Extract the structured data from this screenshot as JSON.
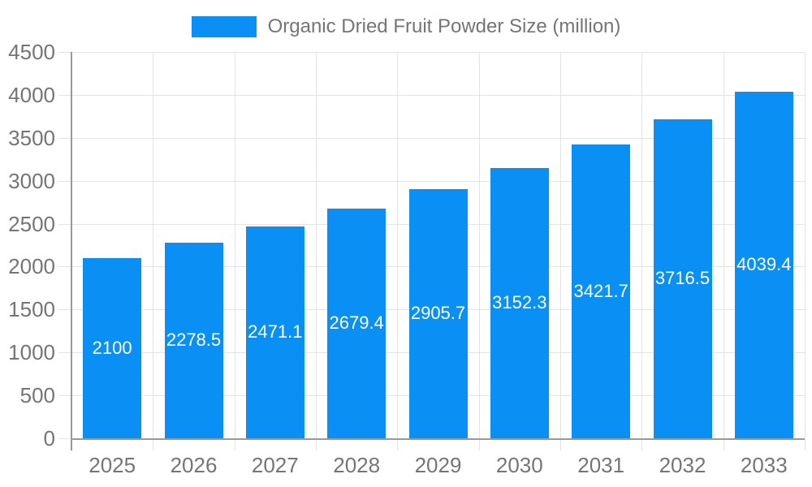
{
  "legend": {
    "label": "Organic Dried Fruit Powder Size (million)"
  },
  "chart_data": {
    "type": "bar",
    "title": "Organic Dried Fruit Powder Size (million)",
    "categories": [
      "2025",
      "2026",
      "2027",
      "2028",
      "2029",
      "2030",
      "2031",
      "2032",
      "2033"
    ],
    "values": [
      2100,
      2278.5,
      2471.1,
      2679.4,
      2905.7,
      3152.3,
      3421.7,
      3716.5,
      4039.4
    ],
    "value_labels": [
      "2100",
      "2278.5",
      "2471.1",
      "2679.4",
      "2905.7",
      "3152.3",
      "3421.7",
      "3716.5",
      "4039.4"
    ],
    "xlabel": "",
    "ylabel": "",
    "ylim": [
      0,
      4500
    ],
    "yticks": [
      0,
      500,
      1000,
      1500,
      2000,
      2500,
      3000,
      3500,
      4000,
      4500
    ],
    "grid": true,
    "legend_position": "top-center",
    "colors": {
      "bar": "#0a8ff5",
      "value_label": "#ffffff",
      "grid_line": "#e3e3e3",
      "axis_line": "#999999",
      "tick_label": "#757575",
      "legend_text": "#757575",
      "background": "#ffffff"
    }
  }
}
